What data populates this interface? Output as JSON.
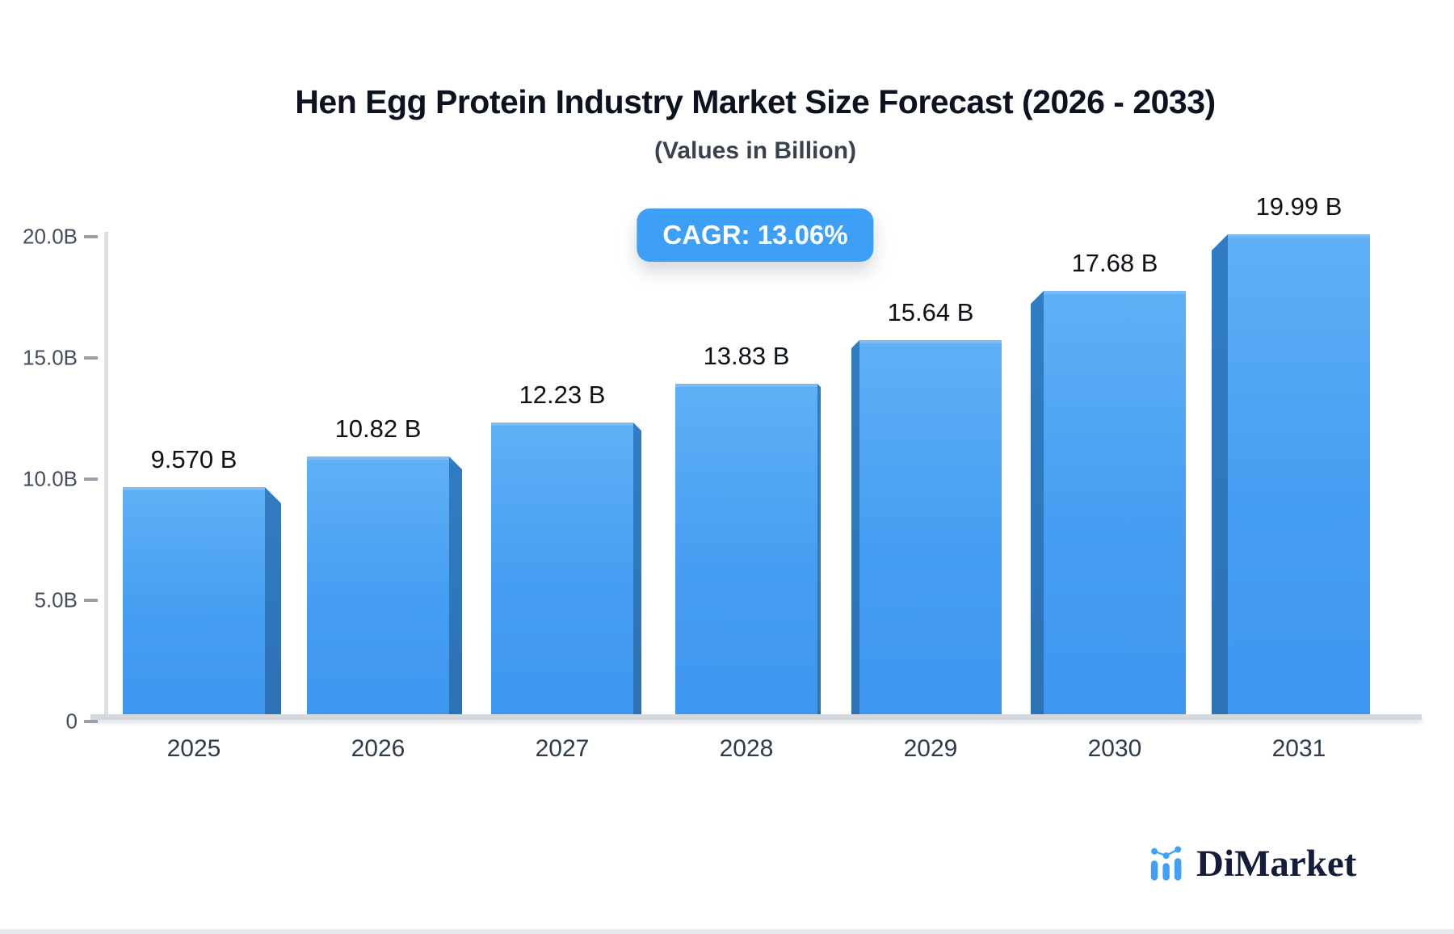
{
  "header": {
    "title": "Hen Egg Protein Industry Market Size Forecast (2026 - 2033)",
    "subtitle": "(Values in Billion)"
  },
  "badge": {
    "label": "CAGR: 13.06%",
    "bg_color": "#3da0f6",
    "text_color": "#ffffff"
  },
  "chart_data": {
    "type": "bar",
    "title": "Hen Egg Protein Industry Market Size Forecast (2026 - 2033)",
    "subtitle": "(Values in Billion)",
    "cagr_percent": 13.06,
    "categories": [
      "2025",
      "2026",
      "2027",
      "2028",
      "2029",
      "2030",
      "2031"
    ],
    "values": [
      9.57,
      10.82,
      12.23,
      13.83,
      15.64,
      17.68,
      19.99
    ],
    "value_labels": [
      "9.570 B",
      "10.82 B",
      "12.23 B",
      "13.83 B",
      "15.64 B",
      "17.68 B",
      "19.99 B"
    ],
    "unit": "Billion",
    "xlabel": "",
    "ylabel": "",
    "y_ticks": [
      "0",
      "5.0B",
      "10.0B",
      "15.0B",
      "20.0B"
    ],
    "ylim": [
      0,
      20
    ],
    "grid": false,
    "legend": false,
    "bar_color": "#459ef2",
    "bar_top_edge_color": "#79bbf8",
    "bar_side_color": "#2c72b4"
  },
  "footer": {
    "brand": "DiMarket",
    "logo_icon": "bar-chart-trend-icon",
    "brand_text_color": "#141e3a",
    "logo_color": "#3fa0f5"
  }
}
